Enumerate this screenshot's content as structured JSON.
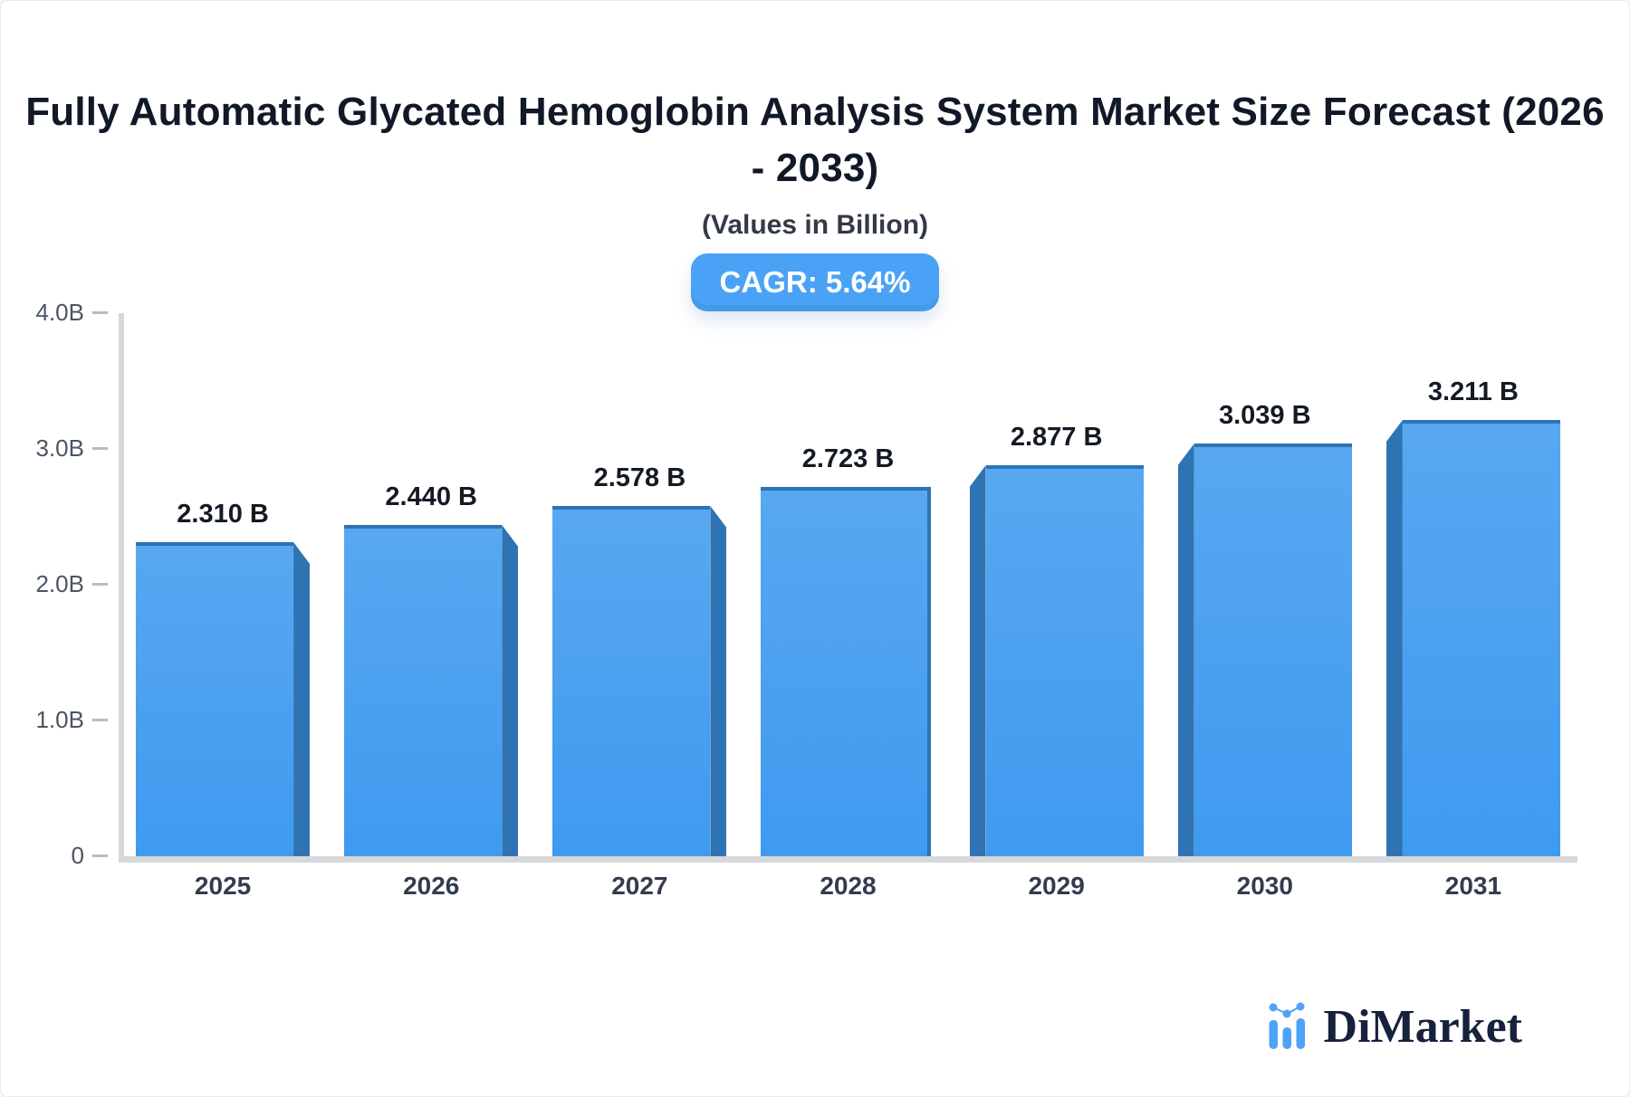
{
  "header": {
    "title_lines": [
      "Fully Automatic Glycated Hemoglobin Analysis System Market Size Forecast (2026",
      "- 2033)"
    ],
    "subtitle": "(Values in Billion)",
    "cagr_badge": "CAGR: 5.64%"
  },
  "chart_data": {
    "type": "bar",
    "title": "Fully Automatic Glycated Hemoglobin Analysis System Market Size Forecast (2026 - 2033)",
    "subtitle": "(Values in Billion)",
    "categories": [
      "2025",
      "2026",
      "2027",
      "2028",
      "2029",
      "2030",
      "2031"
    ],
    "values": [
      2.31,
      2.44,
      2.578,
      2.723,
      2.877,
      3.039,
      3.211
    ],
    "value_labels": [
      "2.310 B",
      "2.440 B",
      "2.578 B",
      "2.723 B",
      "2.877 B",
      "3.039 B",
      "3.211 B"
    ],
    "unit": "Billion",
    "ylim": [
      0,
      4.0
    ],
    "ytick_values": [
      4.0,
      3.0,
      2.0,
      1.0,
      0
    ],
    "ytick_labels": [
      "4.0B",
      "3.0B",
      "2.0B",
      "1.0B",
      "0"
    ],
    "grid": false,
    "legend": "none",
    "bar_style_3d_sides": [
      "right",
      "right",
      "right",
      "none",
      "left",
      "left",
      "left"
    ]
  },
  "colors": {
    "badge_bg": "#4aa2f6",
    "bar_face_top": "#58a8f1",
    "bar_face_bottom": "#3f9af0",
    "bar_side": "#2e74b4",
    "bar_top_edge": "#2d72b4",
    "axis": "#d6d8dc",
    "tick": "#b7bcc4",
    "logo_blue": "#4da3f7",
    "logo_text_color": "#16213c"
  },
  "branding": {
    "logo_text": "DiMarket",
    "logo_icon": "bar-chart-with-trendline-icon"
  }
}
